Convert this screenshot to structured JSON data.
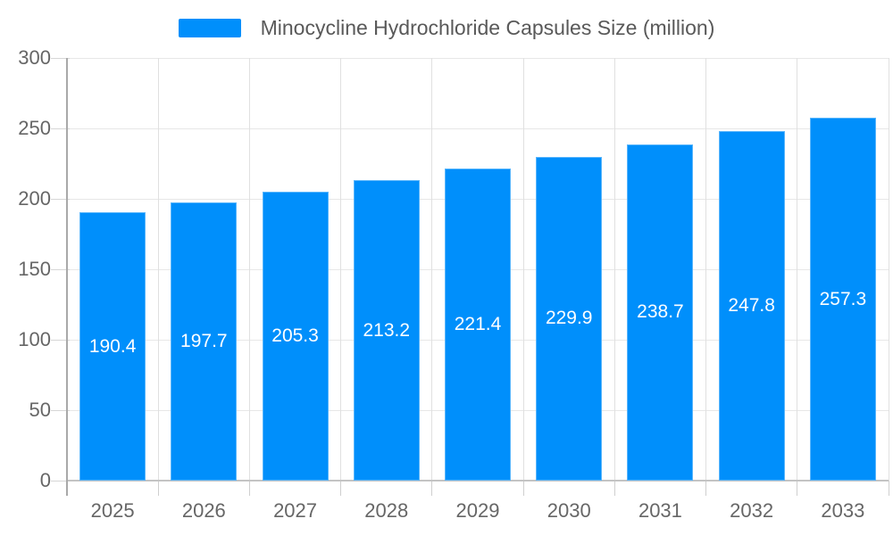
{
  "chart_data": {
    "type": "bar",
    "title": "Minocycline Hydrochloride Capsules Size (million)",
    "categories": [
      "2025",
      "2026",
      "2027",
      "2028",
      "2029",
      "2030",
      "2031",
      "2032",
      "2033"
    ],
    "series": [
      {
        "name": "Minocycline Hydrochloride Capsules Size (million)",
        "values": [
          190.4,
          197.7,
          205.3,
          213.2,
          221.4,
          229.9,
          238.7,
          247.8,
          257.3
        ]
      }
    ],
    "bar_value_labels": [
      "190.4",
      "197.7",
      "205.3",
      "213.2",
      "221.4",
      "229.9",
      "238.7",
      "247.8",
      "257.3"
    ],
    "xlabel": "",
    "ylabel": "",
    "ylim": [
      0,
      300
    ],
    "yticks": [
      0,
      50,
      100,
      150,
      200,
      250,
      300
    ],
    "grid": true,
    "legend_position": "top-center",
    "colors": {
      "bar": "#008FFB",
      "bar_value_text": "#ffffff",
      "axis_text": "#666666",
      "legend_text": "#595959",
      "h_gridline": "#e7e7e7",
      "v_gridline": "#e0e0e0",
      "y_axis_line": "#a9a9a9",
      "x_axis_line": "#c4c4c4",
      "y_tick": "#d6d6d6",
      "x_tick": "#cfcfcf"
    }
  }
}
